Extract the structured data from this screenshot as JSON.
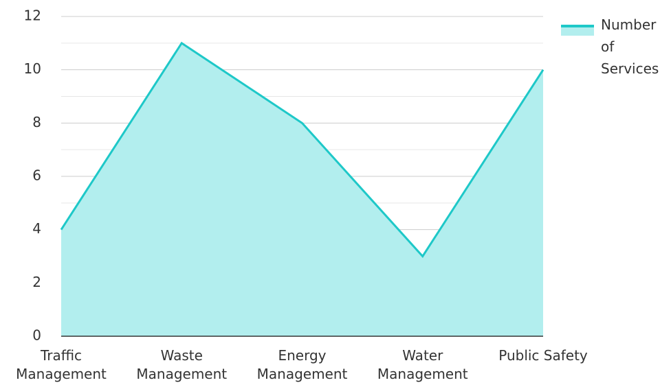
{
  "chart_data": {
    "type": "area",
    "categories": [
      "Traffic Management",
      "Waste Management",
      "Energy Management",
      "Water Management",
      "Public Safety"
    ],
    "series": [
      {
        "name": "Number of Services",
        "color": "#1ec8c8",
        "fill": "#b2eeee",
        "values": [
          4,
          11,
          8,
          3,
          10
        ]
      }
    ],
    "ylim": [
      0,
      12
    ],
    "yticks": [
      0,
      2,
      4,
      6,
      8,
      10,
      12
    ],
    "grid": true,
    "legend": "top-right"
  }
}
